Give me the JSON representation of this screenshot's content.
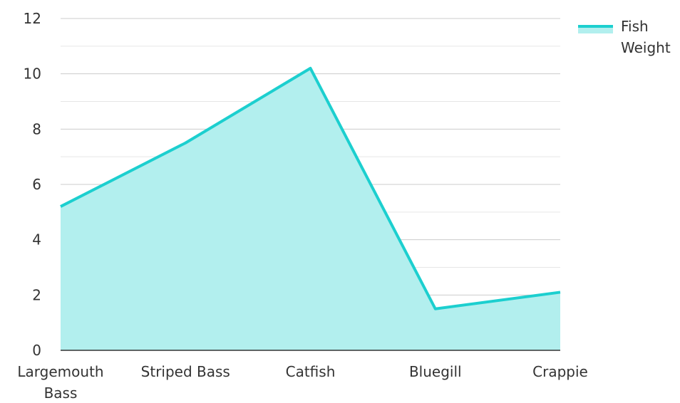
{
  "chart_data": {
    "type": "area",
    "title": "",
    "xlabel": "",
    "ylabel": "",
    "categories": [
      "Largemouth Bass",
      "Striped Bass",
      "Catfish",
      "Bluegill",
      "Crappie"
    ],
    "series": [
      {
        "name": "Fish Weight",
        "values": [
          5.2,
          7.5,
          10.2,
          1.5,
          2.1
        ],
        "line_color": "#1ccfcf",
        "fill_color": "#b2efee"
      }
    ],
    "ylim": [
      0,
      12
    ],
    "yticks": [
      0,
      2,
      4,
      6,
      8,
      10,
      12
    ],
    "grid": true,
    "legend_position": "top-right"
  }
}
